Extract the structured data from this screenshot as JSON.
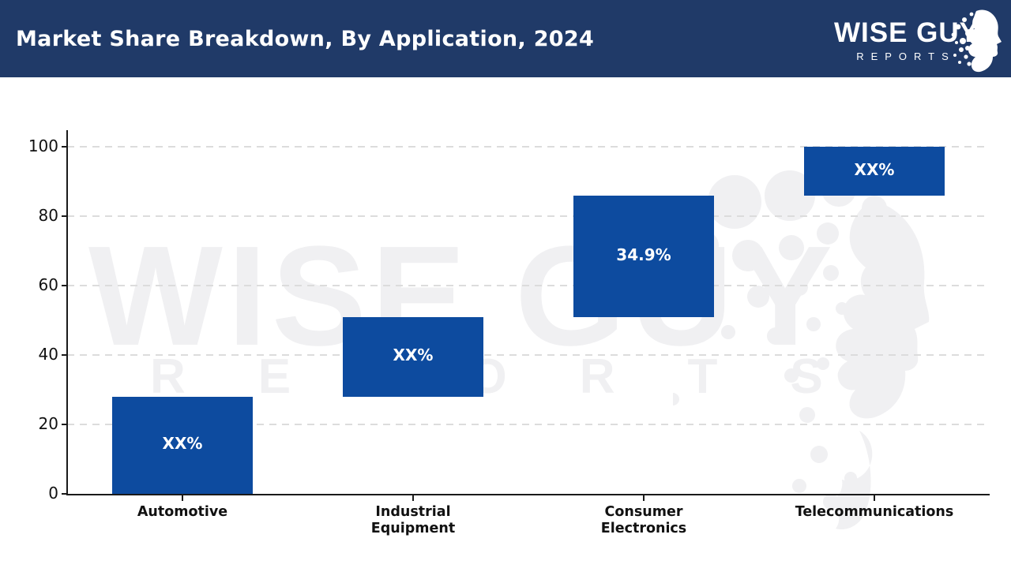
{
  "header": {
    "title": "Market Share Breakdown, By Application, 2024",
    "logo": {
      "wordmark": "WISE GUY",
      "subtext": "REPORTS"
    }
  },
  "watermark": {
    "wordmark": "WISE GUY",
    "subtext": "REPORTS"
  },
  "colors": {
    "header_bg": "#203a68",
    "bar": "#0d4b9f",
    "grid": "#dcdcdc",
    "axis": "#1a1a1a",
    "watermark": "#f0f0f2",
    "value_label": "#ffffff"
  },
  "chart_data": {
    "type": "bar",
    "subtype": "floating-waterfall",
    "title": "Market Share Breakdown, By Application, 2024",
    "xlabel": "",
    "ylabel": "",
    "ylim": [
      0,
      105
    ],
    "yticks": [
      0,
      20,
      40,
      60,
      80,
      100
    ],
    "grid": "horizontal-dashed",
    "legend": "none",
    "categories": [
      "Automotive",
      "Industrial\nEquipment",
      "Consumer\nElectronics",
      "Telecommunications"
    ],
    "segments": [
      {
        "category": "Automotive",
        "start": 0,
        "end": 28,
        "label": "XX%"
      },
      {
        "category": "Industrial\nEquipment",
        "start": 28,
        "end": 51,
        "label": "XX%"
      },
      {
        "category": "Consumer\nElectronics",
        "start": 51,
        "end": 85.9,
        "label": "34.9%"
      },
      {
        "category": "Telecommunications",
        "start": 85.9,
        "end": 100,
        "label": "XX%"
      }
    ]
  }
}
